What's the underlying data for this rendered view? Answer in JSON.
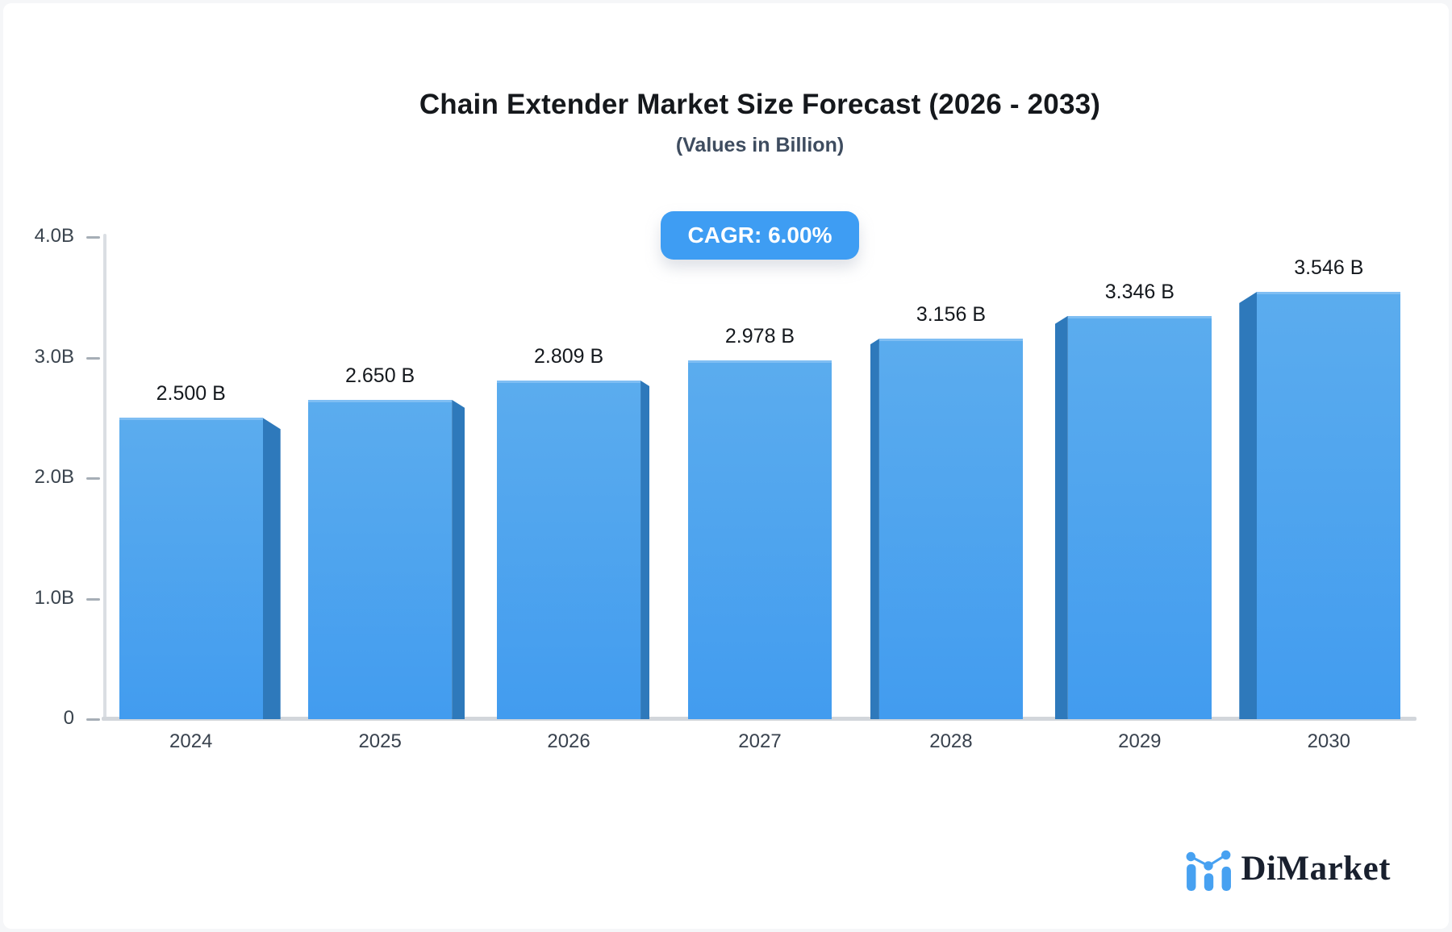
{
  "page": {
    "title": "Chain Extender Market Size Forecast (2026 - 2033)",
    "subtitle": "(Values in Billion)",
    "cagr_label": "CAGR: 6.00%"
  },
  "chart_data": {
    "type": "bar",
    "title": "Chain Extender Market Size Forecast (2026 - 2033)",
    "subtitle": "(Values in Billion)",
    "cagr_percent": "6.00%",
    "unit": "Billion",
    "categories": [
      "2024",
      "2025",
      "2026",
      "2027",
      "2028",
      "2029",
      "2030"
    ],
    "values": [
      2.5,
      2.65,
      2.809,
      2.978,
      3.156,
      3.346,
      3.546
    ],
    "value_labels": [
      "2.500 B",
      "2.650 B",
      "2.809 B",
      "2.978 B",
      "3.156 B",
      "3.346 B",
      "3.546 B"
    ],
    "ylim": [
      0,
      4.0
    ],
    "yticks": [
      {
        "label": "0",
        "value": 0
      },
      {
        "label": "1.0B",
        "value": 1
      },
      {
        "label": "2.0B",
        "value": 2
      },
      {
        "label": "3.0B",
        "value": 3
      },
      {
        "label": "4.0B",
        "value": 4
      }
    ],
    "grid": false,
    "legend": "none",
    "bar_color_top": "#5BACEE",
    "bar_color_bottom": "#429CEF",
    "bar_side_color": "#2E79BB",
    "badge_color": "#3E9DF3"
  },
  "logo": {
    "text": "DiMarket",
    "text_color": "#19202E",
    "icon_color": "#47A1F1",
    "icon": "bar-chart-logo-icon"
  }
}
